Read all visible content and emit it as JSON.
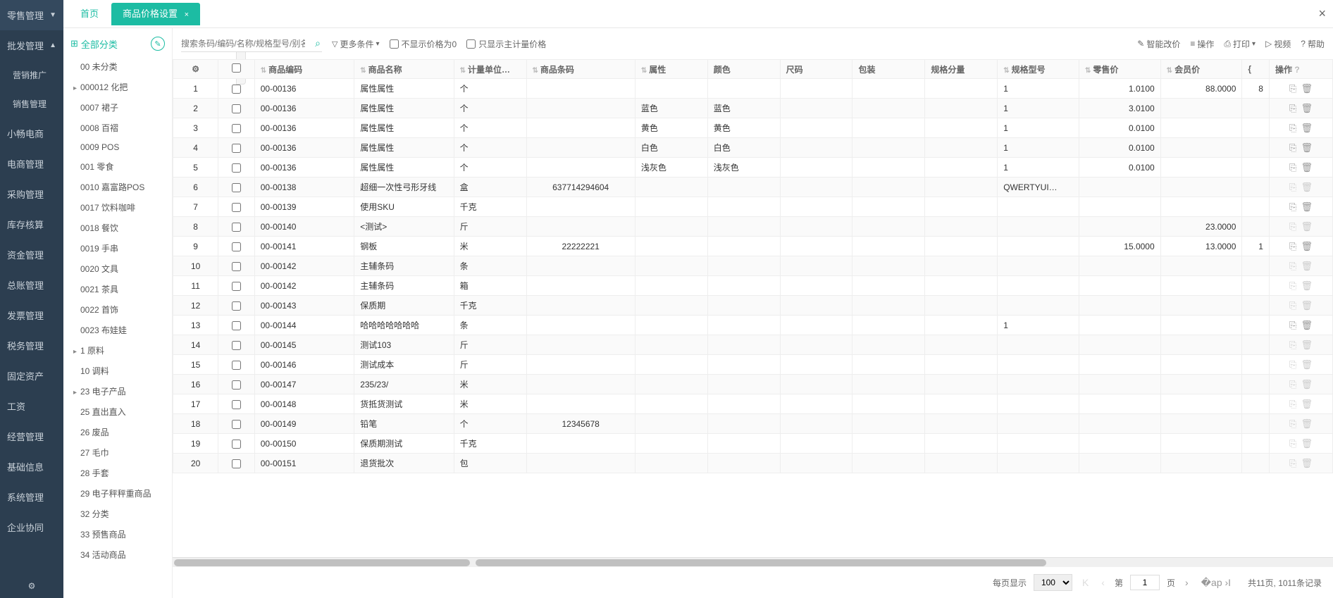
{
  "sidebar": {
    "groups": [
      {
        "label": "零售管理",
        "caret": "▼",
        "expanded": false,
        "children": []
      },
      {
        "label": "批发管理",
        "caret": "▲",
        "expanded": true,
        "children": [
          {
            "label": "营销推广"
          },
          {
            "label": "销售管理"
          }
        ]
      },
      {
        "label": "小畅电商",
        "children": []
      },
      {
        "label": "电商管理",
        "children": []
      },
      {
        "label": "采购管理",
        "children": []
      },
      {
        "label": "库存核算",
        "children": []
      },
      {
        "label": "资金管理",
        "children": []
      },
      {
        "label": "总账管理",
        "children": []
      },
      {
        "label": "发票管理",
        "children": []
      },
      {
        "label": "税务管理",
        "children": []
      },
      {
        "label": "固定资产",
        "children": []
      },
      {
        "label": "工资",
        "children": []
      },
      {
        "label": "经营管理",
        "children": []
      },
      {
        "label": "基础信息",
        "children": []
      },
      {
        "label": "系统管理",
        "children": []
      },
      {
        "label": "企业协同",
        "children": []
      }
    ]
  },
  "tabs": {
    "home": "首页",
    "active": "商品价格设置",
    "close": "×"
  },
  "tree": {
    "root": "全部分类",
    "nodes": [
      {
        "label": "00 未分类"
      },
      {
        "label": "000012 化把",
        "hasChild": true
      },
      {
        "label": "0007 裙子"
      },
      {
        "label": "0008 百褶"
      },
      {
        "label": "0009 POS"
      },
      {
        "label": "001 零食"
      },
      {
        "label": "0010 嘉富路POS"
      },
      {
        "label": "0017 饮料咖啡"
      },
      {
        "label": "0018 餐饮"
      },
      {
        "label": "0019 手串"
      },
      {
        "label": "0020 文具"
      },
      {
        "label": "0021 茶具"
      },
      {
        "label": "0022 首饰"
      },
      {
        "label": "0023 布娃娃"
      },
      {
        "label": "1 原料",
        "hasChild": true
      },
      {
        "label": "10 调料"
      },
      {
        "label": "23 电子产品",
        "hasChild": true
      },
      {
        "label": "25 直出直入"
      },
      {
        "label": "26 废品"
      },
      {
        "label": "27 毛巾"
      },
      {
        "label": "28 手套"
      },
      {
        "label": "29 电子秤秤重商品"
      },
      {
        "label": "32 分类"
      },
      {
        "label": "33 预售商品"
      },
      {
        "label": "34 活动商品"
      }
    ]
  },
  "toolbar": {
    "search_placeholder": "搜索条码/编码/名称/规格型号/别名",
    "more": "更多条件",
    "chk_hide_zero": "不显示价格为0",
    "chk_show_main": "只显示主计量价格",
    "smart": "智能改价",
    "op": "操作",
    "print": "打印",
    "video": "视频",
    "help": "帮助"
  },
  "table": {
    "headers": {
      "code": "商品编码",
      "name": "商品名称",
      "unit": "计量单位…",
      "barcode": "商品条码",
      "attr": "属性",
      "color": "颜色",
      "size": "尺码",
      "pack": "包装",
      "specqty": "规格分量",
      "specmodel": "规格型号",
      "retail": "零售价",
      "member": "会员价",
      "extra": "{",
      "ops": "操作"
    },
    "rows": [
      {
        "idx": 1,
        "code": "00-00136",
        "name": "属性属性",
        "unit": "个",
        "barcode": "",
        "attr": "",
        "color": "",
        "specmodel": "1",
        "retail": "1.0100",
        "member": "88.0000",
        "extra": "8",
        "actEnabled": true
      },
      {
        "idx": 2,
        "code": "00-00136",
        "name": "属性属性",
        "unit": "个",
        "barcode": "",
        "attr": "蓝色",
        "color": "蓝色",
        "specmodel": "1",
        "retail": "3.0100",
        "member": "",
        "actEnabled": true
      },
      {
        "idx": 3,
        "code": "00-00136",
        "name": "属性属性",
        "unit": "个",
        "barcode": "",
        "attr": "黄色",
        "color": "黄色",
        "specmodel": "1",
        "retail": "0.0100",
        "member": "",
        "actEnabled": true
      },
      {
        "idx": 4,
        "code": "00-00136",
        "name": "属性属性",
        "unit": "个",
        "barcode": "",
        "attr": "白色",
        "color": "白色",
        "specmodel": "1",
        "retail": "0.0100",
        "member": "",
        "actEnabled": true
      },
      {
        "idx": 5,
        "code": "00-00136",
        "name": "属性属性",
        "unit": "个",
        "barcode": "",
        "attr": "浅灰色",
        "color": "浅灰色",
        "specmodel": "1",
        "retail": "0.0100",
        "member": "",
        "actEnabled": true
      },
      {
        "idx": 6,
        "code": "00-00138",
        "name": "超细一次性弓形牙线",
        "unit": "盒",
        "barcode": "637714294604",
        "attr": "",
        "color": "",
        "specmodel": "QWERTYUI…",
        "retail": "",
        "member": "",
        "actEnabled": false
      },
      {
        "idx": 7,
        "code": "00-00139",
        "name": "使用SKU",
        "unit": "千克",
        "barcode": "",
        "attr": "",
        "color": "",
        "specmodel": "",
        "retail": "",
        "member": "",
        "actEnabled": true
      },
      {
        "idx": 8,
        "code": "00-00140",
        "name": "<测试>",
        "unit": "斤",
        "barcode": "",
        "attr": "",
        "color": "",
        "specmodel": "",
        "retail": "",
        "member": "23.0000",
        "actEnabled": false
      },
      {
        "idx": 9,
        "code": "00-00141",
        "name": "钢板",
        "unit": "米",
        "barcode": "22222221",
        "attr": "",
        "color": "",
        "specmodel": "",
        "retail": "15.0000",
        "member": "13.0000",
        "extra": "1",
        "actEnabled": true
      },
      {
        "idx": 10,
        "code": "00-00142",
        "name": "主辅条码",
        "unit": "条",
        "barcode": "",
        "attr": "",
        "color": "",
        "specmodel": "",
        "retail": "",
        "member": "",
        "actEnabled": false
      },
      {
        "idx": 11,
        "code": "00-00142",
        "name": "主辅条码",
        "unit": "箱",
        "barcode": "",
        "attr": "",
        "color": "",
        "specmodel": "",
        "retail": "",
        "member": "",
        "actEnabled": false
      },
      {
        "idx": 12,
        "code": "00-00143",
        "name": "保质期",
        "unit": "千克",
        "barcode": "",
        "attr": "",
        "color": "",
        "specmodel": "",
        "retail": "",
        "member": "",
        "actEnabled": false
      },
      {
        "idx": 13,
        "code": "00-00144",
        "name": "哈哈哈哈哈哈哈",
        "unit": "条",
        "barcode": "",
        "attr": "",
        "color": "",
        "specmodel": "1",
        "retail": "",
        "member": "",
        "actEnabled": true
      },
      {
        "idx": 14,
        "code": "00-00145",
        "name": "测试103",
        "unit": "斤",
        "barcode": "",
        "attr": "",
        "color": "",
        "specmodel": "",
        "retail": "",
        "member": "",
        "actEnabled": false
      },
      {
        "idx": 15,
        "code": "00-00146",
        "name": "测试成本",
        "unit": "斤",
        "barcode": "",
        "attr": "",
        "color": "",
        "specmodel": "",
        "retail": "",
        "member": "",
        "actEnabled": false
      },
      {
        "idx": 16,
        "code": "00-00147",
        "name": "235/23/",
        "unit": "米",
        "barcode": "",
        "attr": "",
        "color": "",
        "specmodel": "",
        "retail": "",
        "member": "",
        "actEnabled": false
      },
      {
        "idx": 17,
        "code": "00-00148",
        "name": "货抵货测试",
        "unit": "米",
        "barcode": "",
        "attr": "",
        "color": "",
        "specmodel": "",
        "retail": "",
        "member": "",
        "actEnabled": false
      },
      {
        "idx": 18,
        "code": "00-00149",
        "name": "铅笔",
        "unit": "个",
        "barcode": "12345678",
        "attr": "",
        "color": "",
        "specmodel": "",
        "retail": "",
        "member": "",
        "actEnabled": false
      },
      {
        "idx": 19,
        "code": "00-00150",
        "name": "保质期测试",
        "unit": "千克",
        "barcode": "",
        "attr": "",
        "color": "",
        "specmodel": "",
        "retail": "",
        "member": "",
        "actEnabled": false
      },
      {
        "idx": 20,
        "code": "00-00151",
        "name": "退货批次",
        "unit": "包",
        "barcode": "",
        "attr": "",
        "color": "",
        "specmodel": "",
        "retail": "",
        "member": "",
        "actEnabled": false
      }
    ]
  },
  "pager": {
    "per_page_label": "每页显示",
    "per_page": "100",
    "page_label_pre": "第",
    "page": "1",
    "page_label_post": "页",
    "summary": "共11页, 1011条记录"
  },
  "colors": {
    "accent": "#1cbca3",
    "sidebar_bg": "#2c3e50"
  }
}
